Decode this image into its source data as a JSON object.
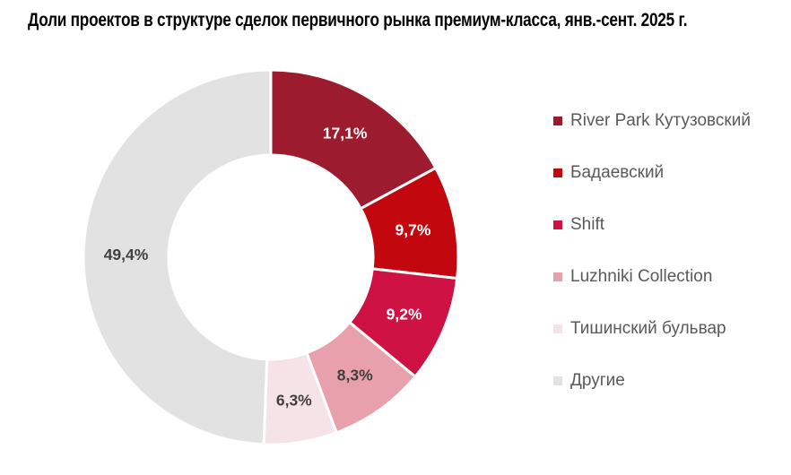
{
  "title": "Доли проектов в структуре сделок первичного рынка премиум-класса, янв.-сент. 2025 г.",
  "colors": {
    "background": "#FFFFFF",
    "title_text": "#000000",
    "legend_text": "#595959",
    "separator": "#FFFFFF",
    "label_on_dark": "#FFFFFF",
    "label_on_light": "#404040"
  },
  "chart_data": {
    "type": "pie",
    "subtype": "donut",
    "title": "Доли проектов в структуре сделок первичного рынка премиум-класса, янв.-сент. 2025 г.",
    "legend_position": "right",
    "start_angle_deg": 0,
    "direction": "clockwise",
    "inner_radius_ratio": 0.545,
    "total": 100,
    "segments": [
      {
        "name": "River Park Кутузовский",
        "value": 17.1,
        "label": "17,1%",
        "color": "#9D1B2E",
        "label_color": "#FFFFFF"
      },
      {
        "name": "Бадаевский",
        "value": 9.7,
        "label": "9,7%",
        "color": "#C2070F",
        "label_color": "#FFFFFF"
      },
      {
        "name": "Shift",
        "value": 9.2,
        "label": "9,2%",
        "color": "#CE1243",
        "label_color": "#FFFFFF"
      },
      {
        "name": "Luzhniki Collection",
        "value": 8.3,
        "label": "8,3%",
        "color": "#E8A0AC",
        "label_color": "#404040"
      },
      {
        "name": "Тишинский бульвар",
        "value": 6.3,
        "label": "6,3%",
        "color": "#F6E3E7",
        "label_color": "#404040"
      },
      {
        "name": "Другие",
        "value": 49.4,
        "label": "49,4%",
        "color": "#E2E2E2",
        "label_color": "#404040"
      }
    ]
  }
}
